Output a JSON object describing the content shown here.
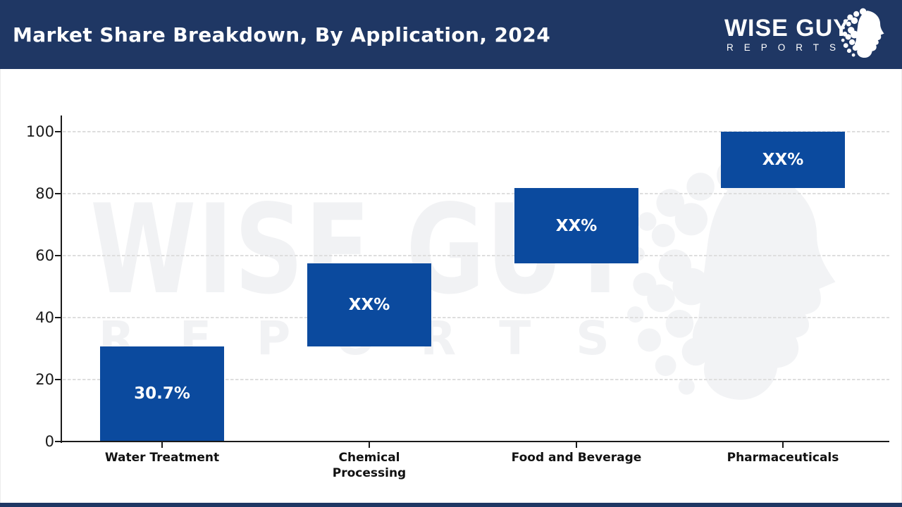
{
  "page": {
    "background": "#ffffff",
    "accent_navy": "#1f3764"
  },
  "header": {
    "title": "Market Share Breakdown, By Application, 2024",
    "logo_line1": "WISE GUY",
    "logo_line2": "REPORTS"
  },
  "watermark": {
    "text_line1": "WISE GUY",
    "text_line2": "REPORTS"
  },
  "chart_data": {
    "type": "bar",
    "subtype": "waterfall",
    "title": "Market Share Breakdown, By Application, 2024",
    "categories": [
      "Water Treatment",
      "Chemical Processing",
      "Food and Beverage",
      "Pharmaceuticals"
    ],
    "tick_labels": [
      "Water Treatment",
      "Chemical\nProcessing",
      "Food and Beverage",
      "Pharmaceuticals"
    ],
    "segments": [
      {
        "category": "Water Treatment",
        "start": 0,
        "end": 30.7,
        "value": 30.7,
        "label": "30.7%"
      },
      {
        "category": "Chemical Processing",
        "start": 30.7,
        "end": 57.5,
        "value": 26.8,
        "label": "XX%"
      },
      {
        "category": "Food and Beverage",
        "start": 57.5,
        "end": 81.8,
        "value": 24.3,
        "label": "XX%"
      },
      {
        "category": "Pharmaceuticals",
        "start": 81.8,
        "end": 100,
        "value": 18.2,
        "label": "XX%"
      }
    ],
    "ylim": [
      0,
      100
    ],
    "yticks": [
      0,
      20,
      40,
      60,
      80,
      100
    ],
    "grid": "horizontal-dashed",
    "legend": "none",
    "bar_color": "#0b4a9e",
    "bar_label_color": "#ffffff",
    "axis_color": "#1a1a1a",
    "gridline_color": "#dedede"
  }
}
